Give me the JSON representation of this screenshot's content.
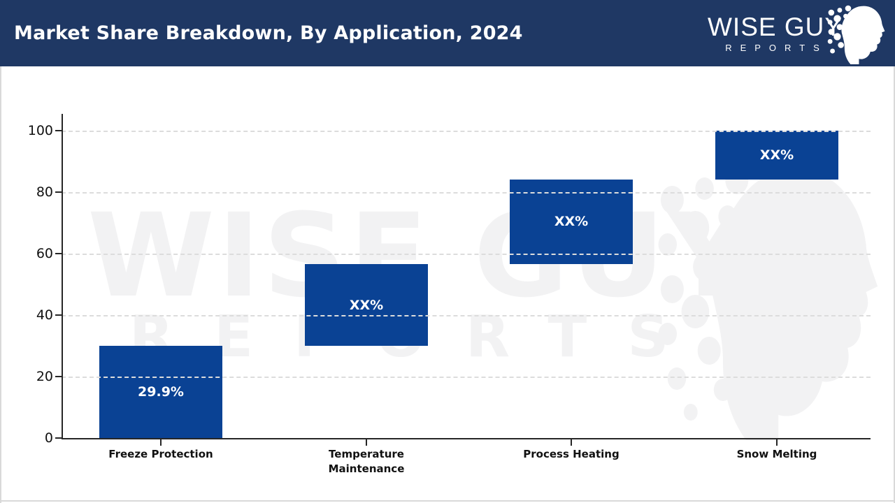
{
  "header": {
    "title": "Market Share Breakdown, By Application, 2024",
    "bg_color": "#1f3864",
    "logo": {
      "line1": "WISE GUY",
      "line2": "REPORTS"
    }
  },
  "watermark": {
    "line1": "WISE GUY",
    "line2": "REPORTS"
  },
  "chart_data": {
    "type": "bar",
    "variant": "waterfall",
    "title": "Market Share Breakdown, By Application, 2024",
    "categories": [
      "Freeze Protection",
      "Temperature Maintenance",
      "Process Heating",
      "Snow Melting"
    ],
    "segments": [
      {
        "category": "Freeze Protection",
        "start": 0,
        "end": 29.9,
        "label": "29.9%"
      },
      {
        "category": "Temperature Maintenance",
        "start": 29.9,
        "end": 56.6,
        "label": "XX%"
      },
      {
        "category": "Process Heating",
        "start": 56.6,
        "end": 84.1,
        "label": "XX%"
      },
      {
        "category": "Snow Melting",
        "start": 84.1,
        "end": 100,
        "label": "XX%"
      }
    ],
    "ylim": [
      0,
      105
    ],
    "yticks": [
      0,
      20,
      40,
      60,
      80,
      100
    ],
    "grid": "dashed horizontal gridlines",
    "legend": "none",
    "bar_color": "#0a4294",
    "bar_label_color": "#ffffff",
    "axis_color": "#262626"
  }
}
